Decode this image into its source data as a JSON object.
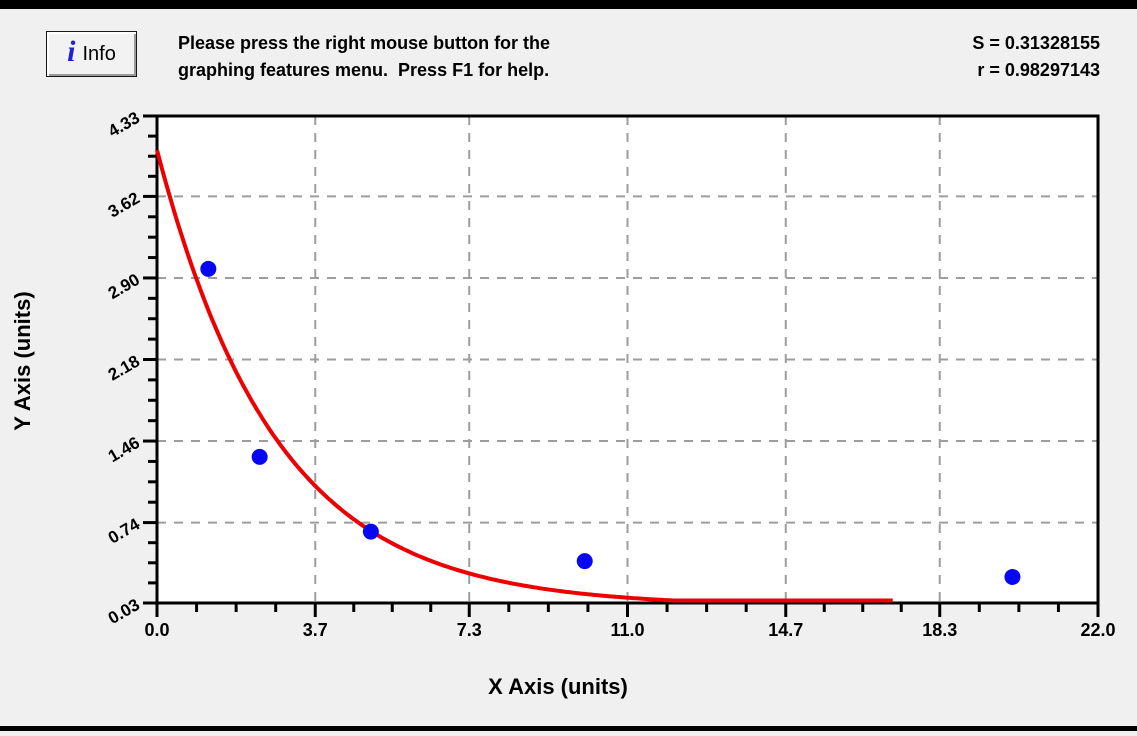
{
  "window": {
    "background": "#f0f0f0",
    "border_color": "#000000"
  },
  "toolbar": {
    "info_button": {
      "label": "Info",
      "icon": "info-italic-i",
      "icon_color": "#2222cc"
    },
    "message_line1": "Please press the right mouse button for the",
    "message_line2": "graphing features menu.  Press F1 for help.",
    "stat_s": "S = 0.31328155",
    "stat_r": "r = 0.98297143"
  },
  "chart_data": {
    "type": "scatter",
    "title": "",
    "xlabel": "X Axis (units)",
    "ylabel": "Y Axis (units)",
    "xlim": [
      0.0,
      22.0
    ],
    "ylim": [
      0.03,
      4.33
    ],
    "x_ticks": [
      0.0,
      3.7,
      7.3,
      11.0,
      14.7,
      18.3,
      22.0
    ],
    "x_tick_labels": [
      "0.0",
      "3.7",
      "7.3",
      "11.0",
      "14.7",
      "18.3",
      "22.0"
    ],
    "y_ticks": [
      0.03,
      0.74,
      1.46,
      2.18,
      2.9,
      3.62,
      4.33
    ],
    "y_tick_labels": [
      "0.03",
      "0.74",
      "1.46",
      "2.18",
      "2.90",
      "3.62",
      "4.33"
    ],
    "minor_ticks_per_major": 4,
    "grid": true,
    "grid_style": "dashed",
    "grid_color": "#9d9d9d",
    "plot_background": "#ffffff",
    "axis_color": "#000000",
    "points": {
      "x": [
        1.2,
        2.4,
        5.0,
        10.0,
        20.0
      ],
      "y": [
        2.98,
        1.32,
        0.66,
        0.4,
        0.26
      ]
    },
    "point_color": "#0707f2",
    "fit_curve": {
      "model": "exponential",
      "equation": "y = a*exp(-b*x)",
      "a": 4.03,
      "b": 0.36,
      "x_start": 0.0,
      "x_end": 17.2,
      "color": "#ee0000"
    },
    "stats": {
      "S": 0.31328155,
      "r": 0.98297143
    }
  }
}
